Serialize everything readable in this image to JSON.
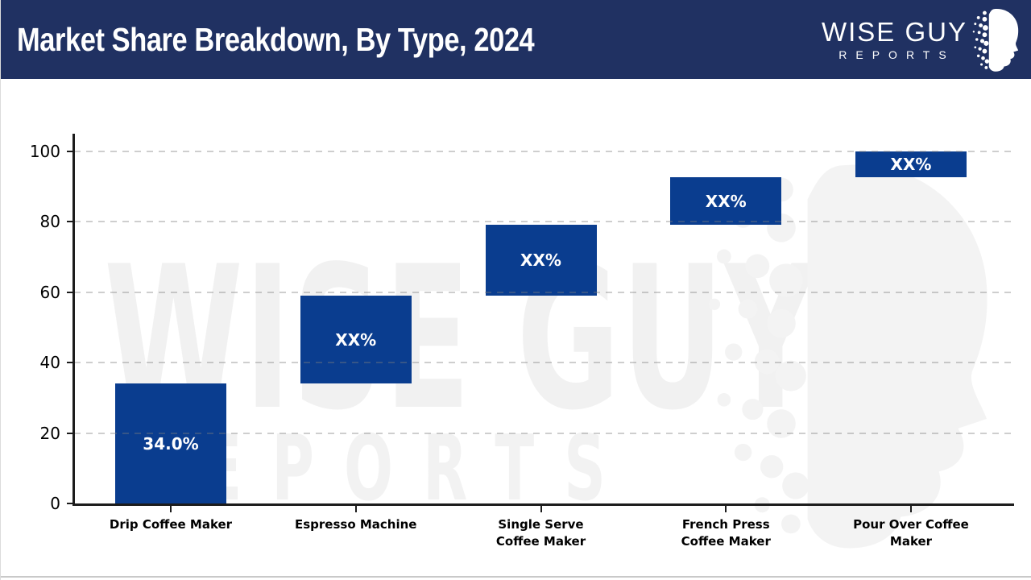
{
  "header": {
    "title": "Market Share Breakdown, By Type, 2024",
    "logo": {
      "line1": "WISE GUY",
      "line2": "REPORTS"
    }
  },
  "watermark": {
    "line1": "WISE GUY",
    "line2": "REPORTS"
  },
  "theme": {
    "header_bg": "#203162",
    "bar_color": "#0a3d8f",
    "bar_label_color": "#ffffff",
    "grid_color": "#cfcfcf",
    "axis_color": "#1c1c1c",
    "watermark_color": "#f1f1f1"
  },
  "chart_data": {
    "type": "bar",
    "subtype": "waterfall",
    "title": "Market Share Breakdown, By Type, 2024",
    "categories": [
      "Drip Coffee Maker",
      "Espresso Machine",
      "Single Serve Coffee Maker",
      "French Press Coffee Maker",
      "Pour Over Coffee Maker"
    ],
    "category_label_lines": [
      [
        "Drip Coffee Maker"
      ],
      [
        "Espresso Machine"
      ],
      [
        "Single Serve",
        "Coffee Maker"
      ],
      [
        "French Press",
        "Coffee Maker"
      ],
      [
        "Pour Over Coffee",
        "Maker"
      ]
    ],
    "segments": [
      {
        "start": 0,
        "end": 34,
        "value": 34,
        "label": "34.0%"
      },
      {
        "start": 34,
        "end": 59,
        "value": 25,
        "label": "XX%"
      },
      {
        "start": 59,
        "end": 79,
        "value": 20,
        "label": "XX%"
      },
      {
        "start": 79,
        "end": 92.5,
        "value": 13.5,
        "label": "XX%"
      },
      {
        "start": 92.5,
        "end": 100,
        "value": 7.5,
        "label": "XX%"
      }
    ],
    "xlabel": "",
    "ylabel": "",
    "yticks": [
      0,
      20,
      40,
      60,
      80,
      100
    ],
    "ylim": [
      0,
      105
    ],
    "grid": "horizontal-dashed",
    "legend": "none",
    "bar_unit": "%"
  }
}
